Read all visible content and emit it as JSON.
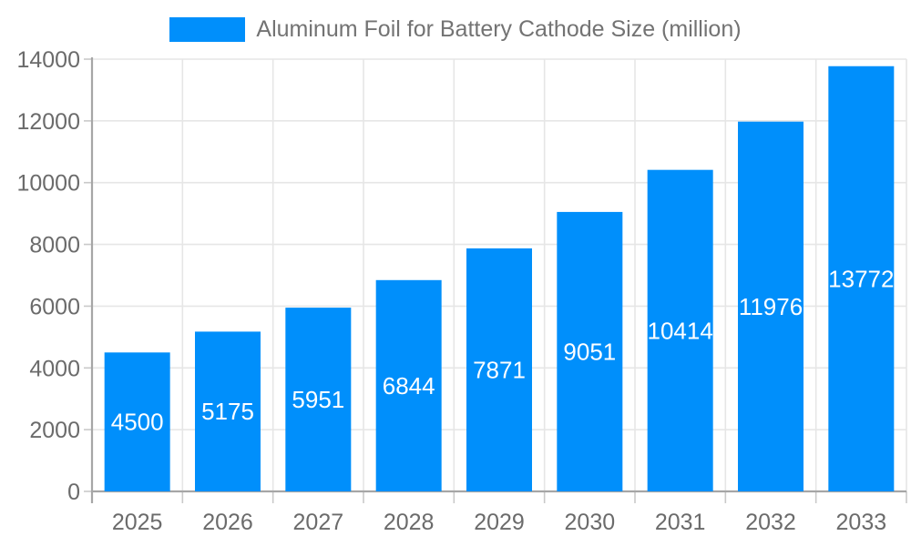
{
  "legend": {
    "label": "Aluminum Foil for Battery Cathode Size (million)"
  },
  "chart_data": {
    "type": "bar",
    "title": "Aluminum Foil for Battery Cathode Size (million)",
    "categories": [
      "2025",
      "2026",
      "2027",
      "2028",
      "2029",
      "2030",
      "2031",
      "2032",
      "2033"
    ],
    "values": [
      4500,
      5175,
      5951,
      6844,
      7871,
      9051,
      10414,
      11976,
      13772
    ],
    "xlabel": "",
    "ylabel": "",
    "ylim": [
      0,
      14000
    ],
    "ytick_step": 2000,
    "yticks": [
      0,
      2000,
      4000,
      6000,
      8000,
      10000,
      12000,
      14000
    ],
    "grid": true,
    "legend_position": "top",
    "colors": {
      "bar": "#008FFB",
      "data_label": "#FFFFFF",
      "axis_label": "#6B6B6B",
      "grid_line": "#E6E6E6",
      "axis_line": "#A6A6A6",
      "tick": "#C9C9C9",
      "background": "#FFFFFF"
    }
  }
}
